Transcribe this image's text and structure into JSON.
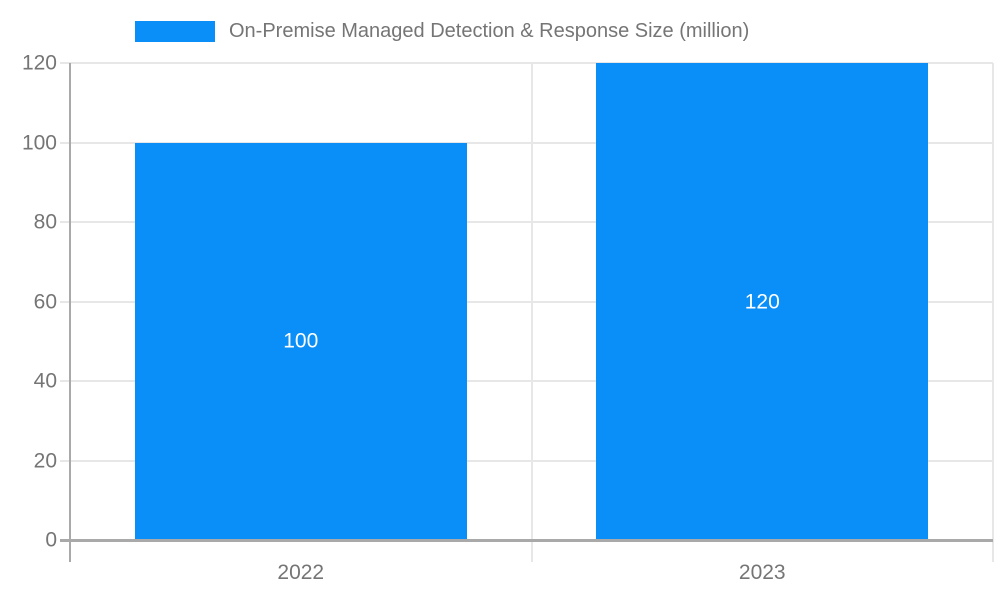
{
  "legend": {
    "label": "On-Premise Managed Detection & Response Size (million)"
  },
  "chart_data": {
    "type": "bar",
    "title": "",
    "xlabel": "",
    "ylabel": "",
    "categories": [
      "2022",
      "2023"
    ],
    "series": [
      {
        "name": "On-Premise Managed Detection & Response Size (million)",
        "values": [
          100,
          120
        ]
      }
    ],
    "data_labels": [
      "100",
      "120"
    ],
    "yticks": [
      "0",
      "20",
      "40",
      "60",
      "80",
      "100",
      "120"
    ],
    "ylim": [
      0,
      120
    ],
    "grid": true,
    "legend_position": "top",
    "colors": {
      "bar": "#0a8ff9",
      "grid_line": "#e7e7e7",
      "axis_line": "#a9a9a9",
      "tick_label": "#757575",
      "data_label": "#ffffff",
      "background": "#ffffff"
    }
  }
}
